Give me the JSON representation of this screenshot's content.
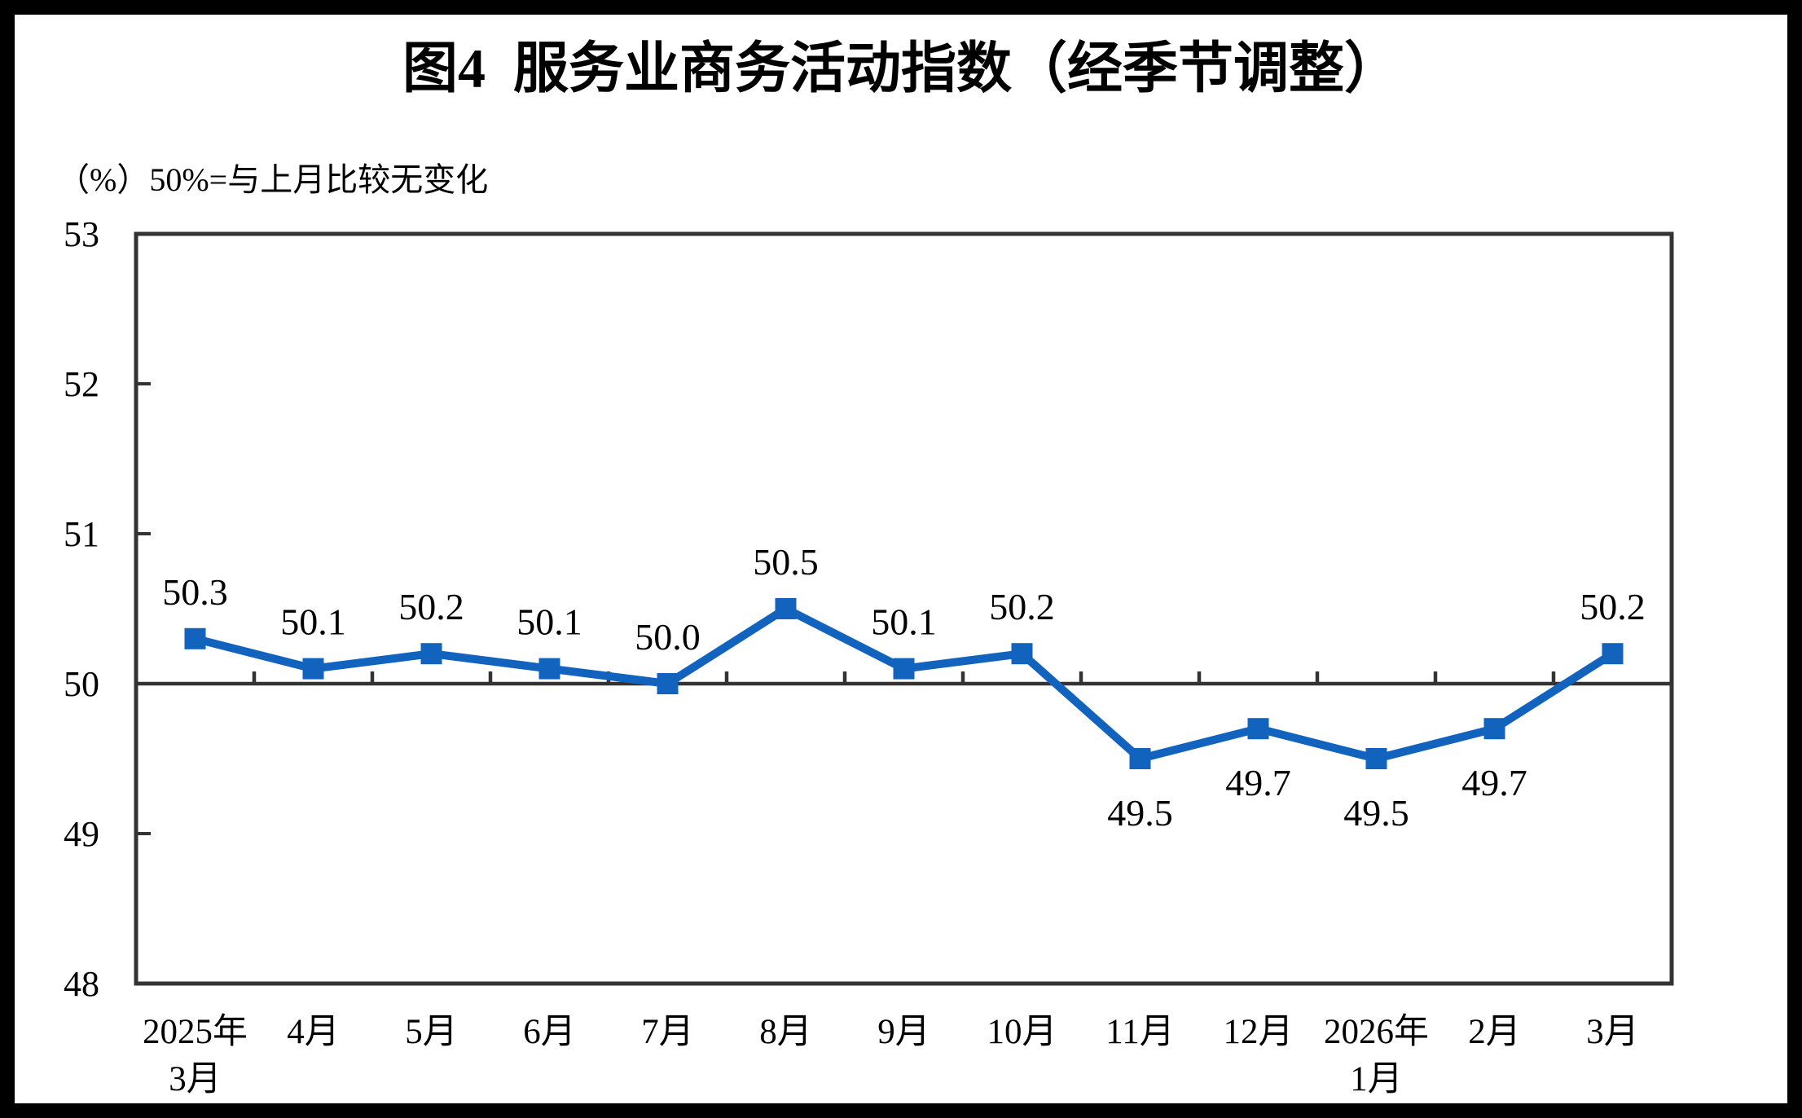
{
  "figure": {
    "title": "图4  服务业商务活动指数（经季节调整）",
    "subtitle": "（%）50%=与上月比较无变化"
  },
  "chart_data": {
    "type": "line",
    "title": "图4 服务业商务活动指数（经季节调整）",
    "note": "（%）50%=与上月比较无变化",
    "categories": [
      "2025年\n3月",
      "4月",
      "5月",
      "6月",
      "7月",
      "8月",
      "9月",
      "10月",
      "11月",
      "12月",
      "2026年\n1月",
      "2月",
      "3月"
    ],
    "series": [
      {
        "name": "服务业商务活动指数",
        "values": [
          50.3,
          50.1,
          50.2,
          50.1,
          50.0,
          50.5,
          50.1,
          50.2,
          49.5,
          49.7,
          49.5,
          49.7,
          50.2
        ]
      }
    ],
    "data_labels": [
      "50.3",
      "50.1",
      "50.2",
      "50.1",
      "50.0",
      "50.5",
      "50.1",
      "50.2",
      "49.5",
      "49.7",
      "49.5",
      "49.7",
      "50.2"
    ],
    "ylim": [
      48,
      53
    ],
    "yticks": [
      48,
      49,
      50,
      51,
      52,
      53
    ],
    "reference_line": 50,
    "grid": "off",
    "legend": "none",
    "marker": "square",
    "colors": {
      "line": "#1163bd",
      "axis": "#333333",
      "text": "#000000",
      "background": "#ffffff",
      "frame": "#000000"
    }
  }
}
